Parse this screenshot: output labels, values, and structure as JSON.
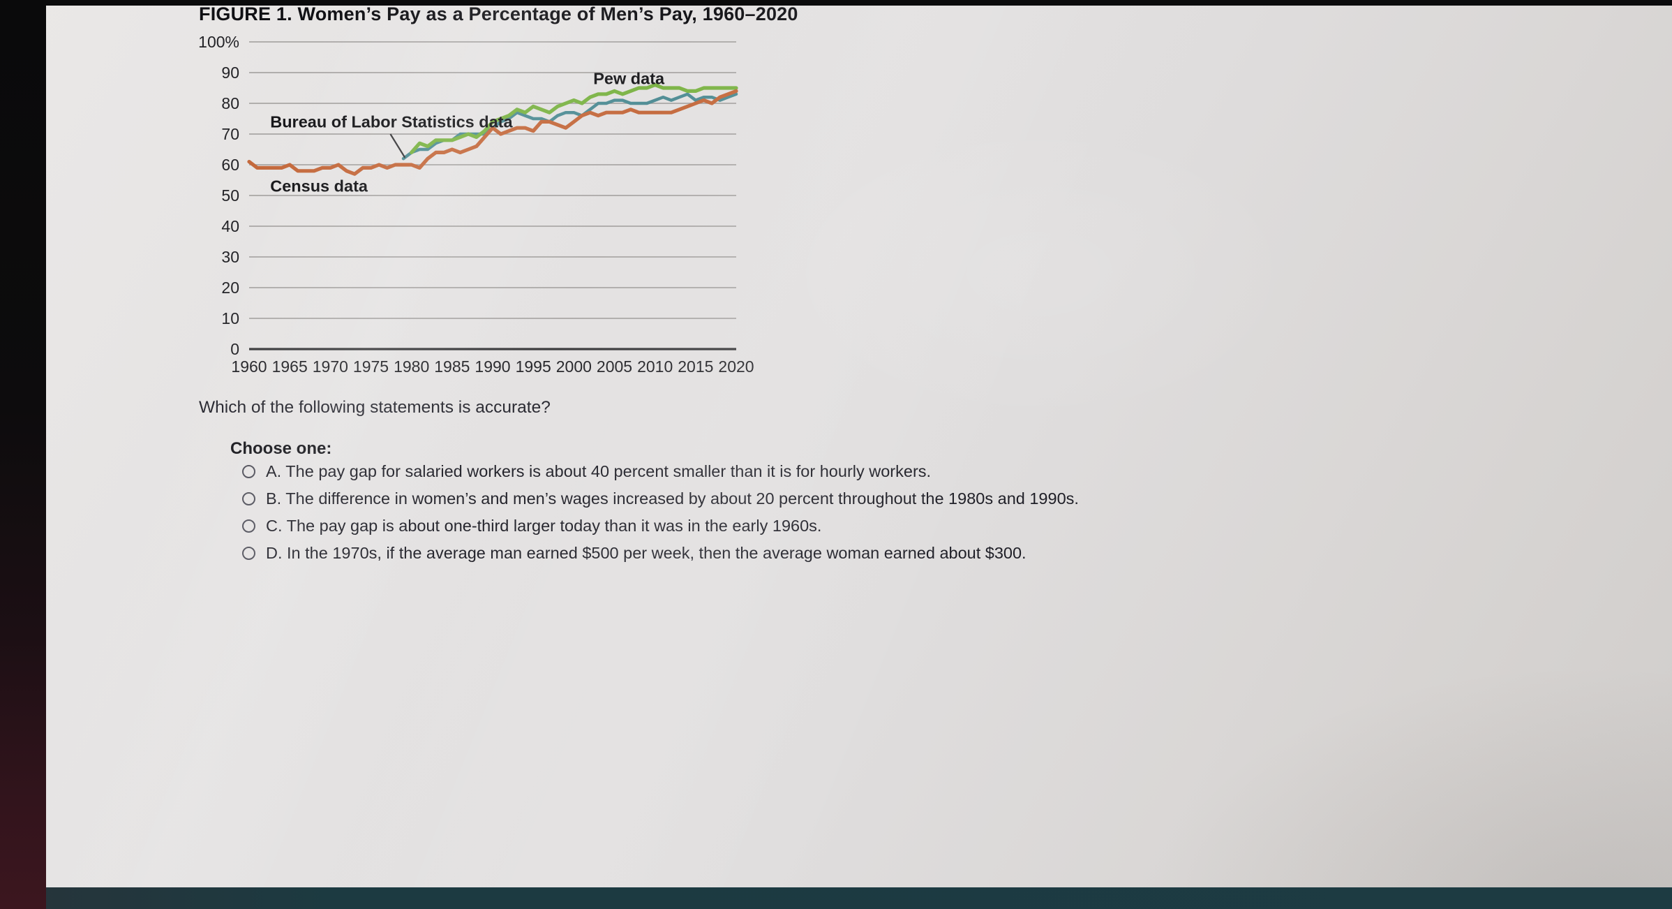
{
  "figure": {
    "title": "FIGURE 1. Women’s Pay as a Percentage of Men’s Pay, 1960–2020"
  },
  "chart_data": {
    "type": "line",
    "title": "FIGURE 1. Women’s Pay as a Percentage of Men’s Pay, 1960–2020",
    "xlabel": "",
    "ylabel": "",
    "ylim": [
      0,
      100
    ],
    "xlim": [
      1960,
      2020
    ],
    "grid": true,
    "legend_position": "inline-annotations",
    "ytick_labels": [
      "100%",
      "90",
      "80",
      "70",
      "60",
      "50",
      "40",
      "30",
      "20",
      "10",
      "0"
    ],
    "xticks": [
      1960,
      1965,
      1970,
      1975,
      1980,
      1985,
      1990,
      1995,
      2000,
      2005,
      2010,
      2015,
      2020
    ],
    "series": [
      {
        "id": "bls",
        "name": "Bureau of Labor Statistics data",
        "color": "#4e8c94",
        "width": 4.5,
        "x_start": 1979,
        "values": [
          62,
          64,
          65,
          65,
          67,
          68,
          68,
          70,
          70,
          70,
          70,
          72,
          74,
          75,
          77,
          76,
          75,
          75,
          74,
          76,
          77,
          77,
          76,
          78,
          80,
          80,
          81,
          81,
          80,
          80,
          80,
          81,
          82,
          81,
          82,
          83,
          81,
          82,
          82,
          81,
          82,
          83
        ]
      },
      {
        "id": "pew",
        "name": "Pew data",
        "color": "#7bb344",
        "width": 5.2,
        "x_start": 1980,
        "values": [
          64,
          67,
          66,
          68,
          68,
          68,
          69,
          70,
          69,
          71,
          74,
          75,
          76,
          78,
          77,
          79,
          78,
          77,
          79,
          80,
          81,
          80,
          82,
          83,
          83,
          84,
          83,
          84,
          85,
          85,
          86,
          85,
          85,
          85,
          84,
          84,
          85,
          85,
          85,
          85,
          85
        ]
      },
      {
        "id": "census",
        "name": "Census data",
        "color": "#c4693c",
        "width": 5.2,
        "x_start": 1960,
        "values": [
          61,
          59,
          59,
          59,
          59,
          60,
          58,
          58,
          58,
          59,
          59,
          60,
          58,
          57,
          59,
          59,
          60,
          59,
          60,
          60,
          60,
          59,
          62,
          64,
          64,
          65,
          64,
          65,
          66,
          69,
          72,
          70,
          71,
          72,
          72,
          71,
          74,
          74,
          73,
          72,
          74,
          76,
          77,
          76,
          77,
          77,
          77,
          78,
          77,
          77,
          77,
          77,
          77,
          78,
          79,
          80,
          81,
          80,
          82,
          83,
          84
        ]
      }
    ],
    "annotations": [
      {
        "id": "pew-data",
        "text": "Pew data",
        "x": 2002.4,
        "y": 86.3
      },
      {
        "id": "bls-data",
        "text": "Bureau of Labor Statistics data",
        "x": 1962.6,
        "y": 72.2,
        "pointer": {
          "from": [
            1977.4,
            70.0
          ],
          "to": [
            1979.2,
            62.3
          ]
        }
      },
      {
        "id": "census-data",
        "text": "Census data",
        "x": 1962.6,
        "y": 51.3
      }
    ]
  },
  "question": {
    "prompt": "Which of the following statements is accurate?",
    "choose_label": "Choose one:",
    "options": [
      {
        "label": "A. The pay gap for salaried workers is about 40 percent smaller than it is for hourly workers."
      },
      {
        "label": "B. The difference in women’s and men’s wages increased by about 20 percent throughout the 1980s and 1990s."
      },
      {
        "label": "C. The pay gap is about one-third larger today than it was in the early 1960s."
      },
      {
        "label": "D. In the 1970s, if the average man earned $500 per week, then the average woman earned about $300."
      }
    ]
  }
}
